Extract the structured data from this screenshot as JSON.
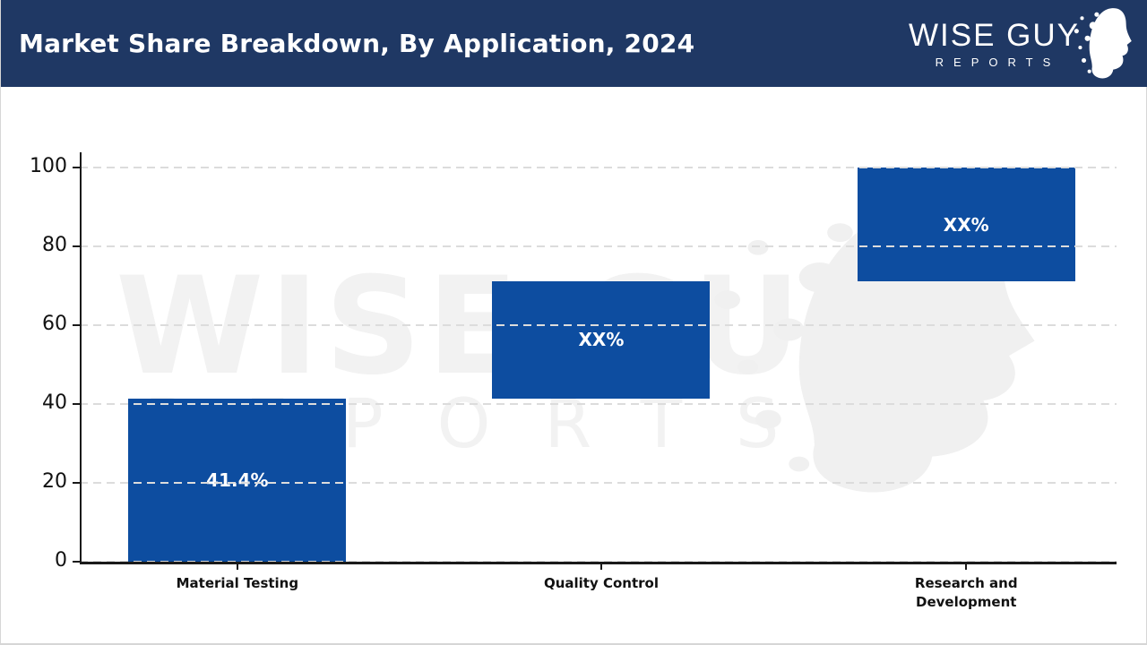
{
  "header": {
    "title": "Market Share Breakdown, By Application, 2024",
    "bg_color": "#1f3864",
    "logo": {
      "line1": "WISE GUY",
      "line2": "REPORTS",
      "icon": "dotted-face-profile"
    }
  },
  "watermark": {
    "line1": "WISE GUY",
    "line2": "REPORTS",
    "icon": "dotted-face-profile",
    "color": "#f2f2f2"
  },
  "chart_data": {
    "type": "waterfall",
    "title": "Market Share Breakdown, By Application, 2024",
    "categories": [
      "Material Testing",
      "Quality Control",
      "Research and Development"
    ],
    "categories_display": [
      "Material Testing",
      "Quality Control",
      "Research and\nDevelopment"
    ],
    "segments": [
      {
        "label": "Material Testing",
        "start": 0,
        "end": 41.4,
        "value": 41.4,
        "display_label": "41.4%"
      },
      {
        "label": "Quality Control",
        "start": 41.4,
        "end": 71.1,
        "value": 29.7,
        "display_label": "XX%"
      },
      {
        "label": "Research and Development",
        "start": 71.1,
        "end": 100,
        "value": 28.9,
        "display_label": "XX%"
      }
    ],
    "xlabel": "",
    "ylabel": "",
    "ylim": [
      0,
      100
    ],
    "yticks": [
      0,
      20,
      40,
      60,
      80,
      100
    ],
    "grid": "horizontal-dashed",
    "legend": "none",
    "bar_color": "#0d4da0",
    "grid_color": "#dcdcdc",
    "axis_color": "#1a1a1a"
  }
}
